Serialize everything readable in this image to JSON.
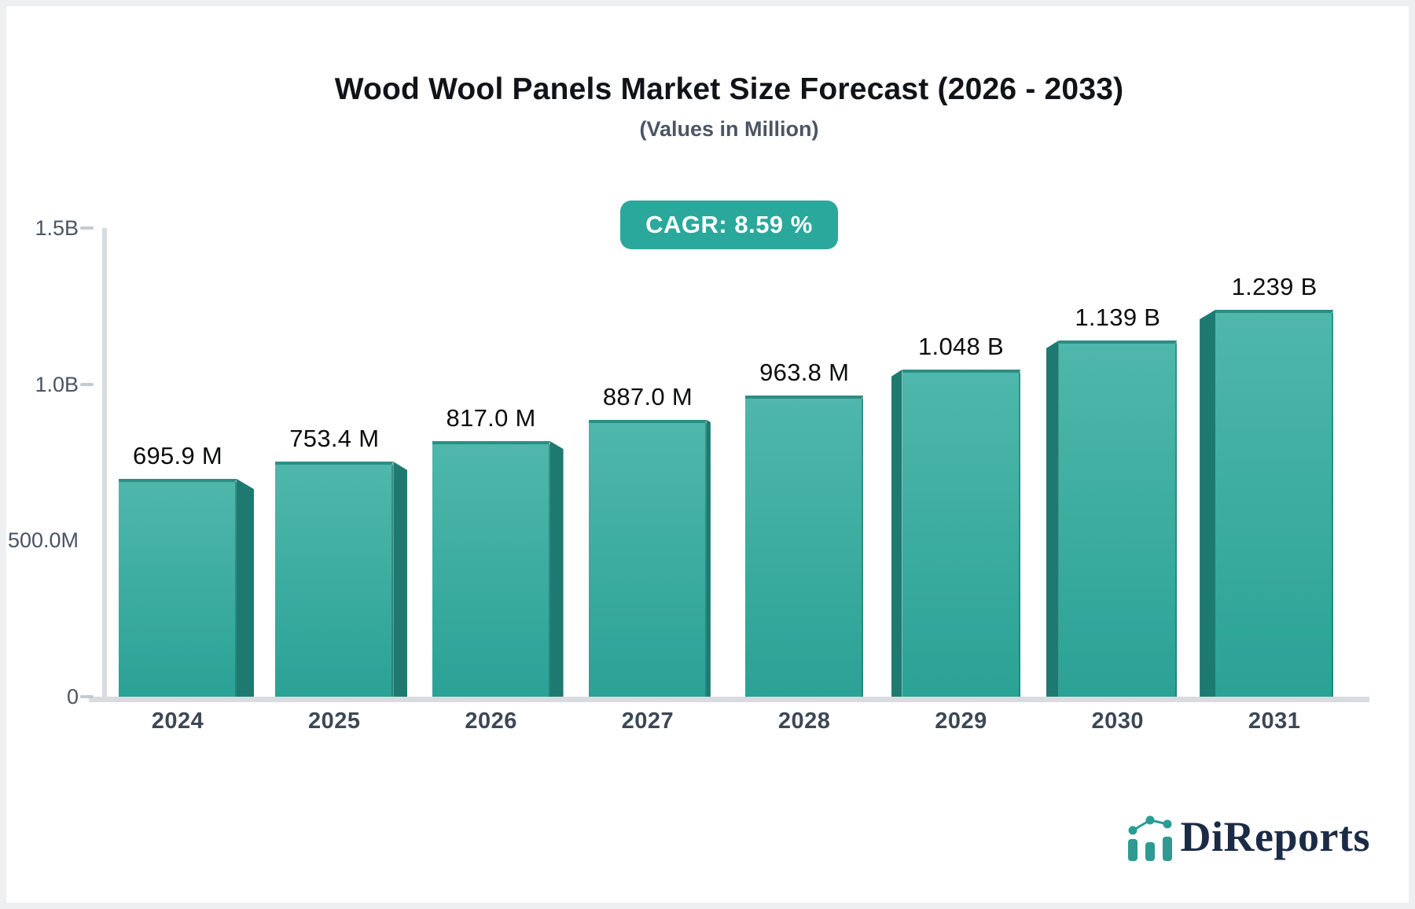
{
  "page": {
    "background": "#edeff1",
    "card_background": "#ffffff"
  },
  "chart_data": {
    "type": "bar",
    "title": "Wood Wool Panels Market Size Forecast (2026 - 2033)",
    "subtitle": "(Values in Million)",
    "annotation": "CAGR: 8.59 %",
    "categories": [
      "2024",
      "2025",
      "2026",
      "2027",
      "2028",
      "2029",
      "2030",
      "2031"
    ],
    "values_millions": [
      695.9,
      753.4,
      817.0,
      887.0,
      963.8,
      1048,
      1139,
      1239
    ],
    "value_labels": [
      "695.9 M",
      "753.4 M",
      "817.0 M",
      "887.0 M",
      "963.8 M",
      "1.048 B",
      "1.139 B",
      "1.239 B"
    ],
    "y_axis": {
      "range_millions": [
        0,
        1500
      ],
      "ticks": [
        {
          "label": "0",
          "value_millions": 0,
          "dash": true
        },
        {
          "label": "500.0M",
          "value_millions": 500,
          "dash": false
        },
        {
          "label": "1.0B",
          "value_millions": 1000,
          "dash": true
        },
        {
          "label": "1.5B",
          "value_millions": 1500,
          "dash": true
        }
      ]
    },
    "gridlines": false,
    "legend": null,
    "colors": {
      "bar_gradient_top": "#4fb7ab",
      "bar_gradient_bottom": "#2aa295",
      "bar_side_dark": "#1e7a70",
      "bar_top_edge": "#2b8e83",
      "badge_background": "#2aa89b",
      "badge_text": "#ffffff",
      "axis_line": "#d8dbdf",
      "y_tick_text": "#4a5462",
      "x_tick_text": "#3d4856",
      "value_label_text": "#0c0d0e"
    }
  },
  "footer": {
    "logo_text": "DiReports"
  }
}
